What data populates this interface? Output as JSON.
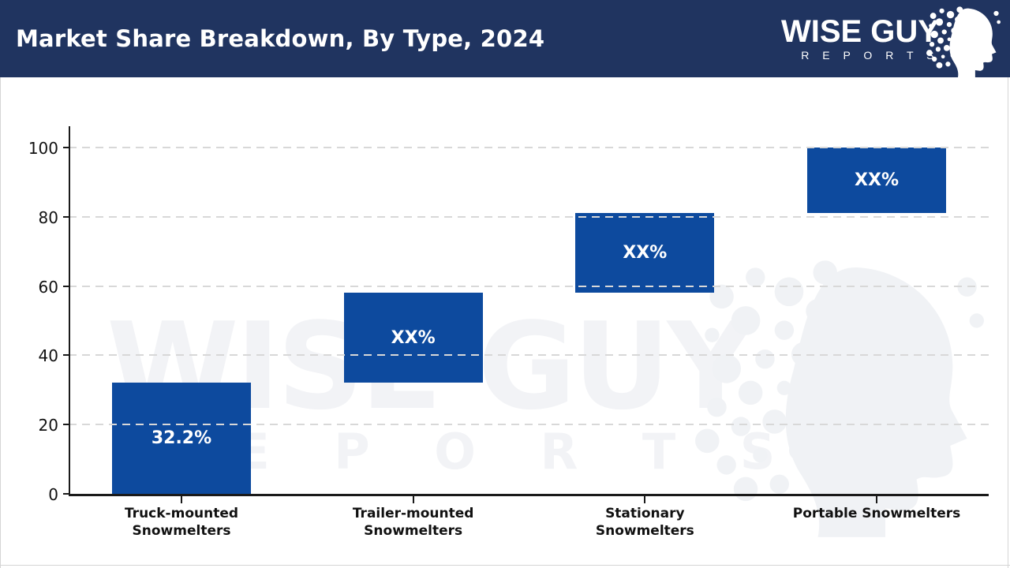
{
  "page": {
    "background": "#ffffff",
    "edge_color": "#d5d5d5"
  },
  "header": {
    "bg_color": "#203460",
    "title": "Market Share Breakdown, By Type, 2024",
    "brand": {
      "line1": "WISE GUY",
      "line2": "R E P O R T S"
    }
  },
  "watermark": {
    "line1": "WISE GUY",
    "line2": "R E P O R T S"
  },
  "chart_data": {
    "type": "bar",
    "subtype": "floating-waterfall",
    "title": "Market Share Breakdown, By Type, 2024",
    "categories": [
      "Truck-mounted Snowmelters",
      "Trailer-mounted Snowmelters",
      "Stationary Snowmelters",
      "Portable Snowmelters"
    ],
    "segments": [
      {
        "category": "Truck-mounted Snowmelters",
        "start": 0,
        "end": 32.2,
        "label": "32.2%"
      },
      {
        "category": "Trailer-mounted Snowmelters",
        "start": 32.2,
        "end": 58,
        "label": "XX%"
      },
      {
        "category": "Stationary Snowmelters",
        "start": 58,
        "end": 81.2,
        "label": "XX%"
      },
      {
        "category": "Portable Snowmelters",
        "start": 81.2,
        "end": 100,
        "label": "XX%"
      }
    ],
    "ylim": [
      0,
      100
    ],
    "yticks": [
      0,
      20,
      40,
      60,
      80,
      100
    ],
    "xlabel": "",
    "ylabel": "",
    "grid": {
      "horizontal": true,
      "style": "dashed",
      "color": "#d8d8d8"
    },
    "legend": null,
    "bar_color": "#0d4a9e",
    "bar_label_color": "#ffffff",
    "axis_color": "#1a1a1a"
  }
}
